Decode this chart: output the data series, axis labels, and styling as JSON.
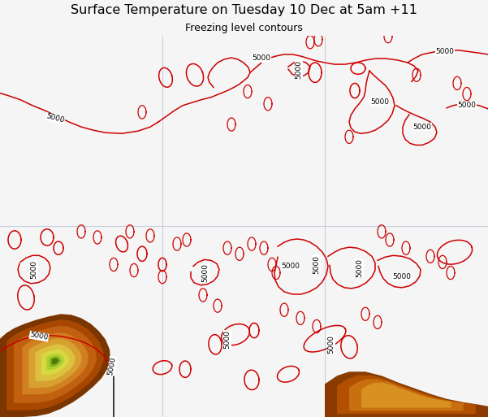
{
  "title": "Surface Temperature on Tuesday 10 Dec at 5am +11",
  "subtitle": "Freezing level contours",
  "title_fontsize": 11.5,
  "subtitle_fontsize": 9,
  "map_bg": "#cdd3e8",
  "header_bg": "#f5f5f5",
  "contour_color": "#cc0000",
  "label": "5000",
  "label_fs": 6.5,
  "grid_color": "#b0b8d0",
  "grid_lw": 0.5,
  "fig_w": 6.01,
  "fig_h": 5.13,
  "dpi": 100
}
